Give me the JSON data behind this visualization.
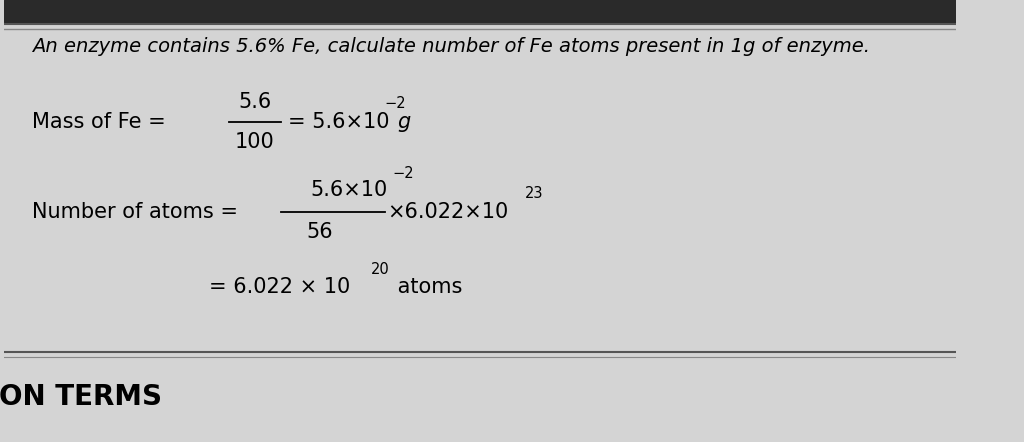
{
  "bg_color_top": "#3a3a3a",
  "bg_color_main": "#d4d4d4",
  "bg_color_bottom": "#c8c8c8",
  "title_text": "An enzyme contains 5.6% Fe, calculate number of Fe atoms present in 1g of enzyme.",
  "title_fontsize": 14,
  "fontsize_main": 15,
  "fontsize_super": 10.5,
  "fontsize_on_terms": 20
}
